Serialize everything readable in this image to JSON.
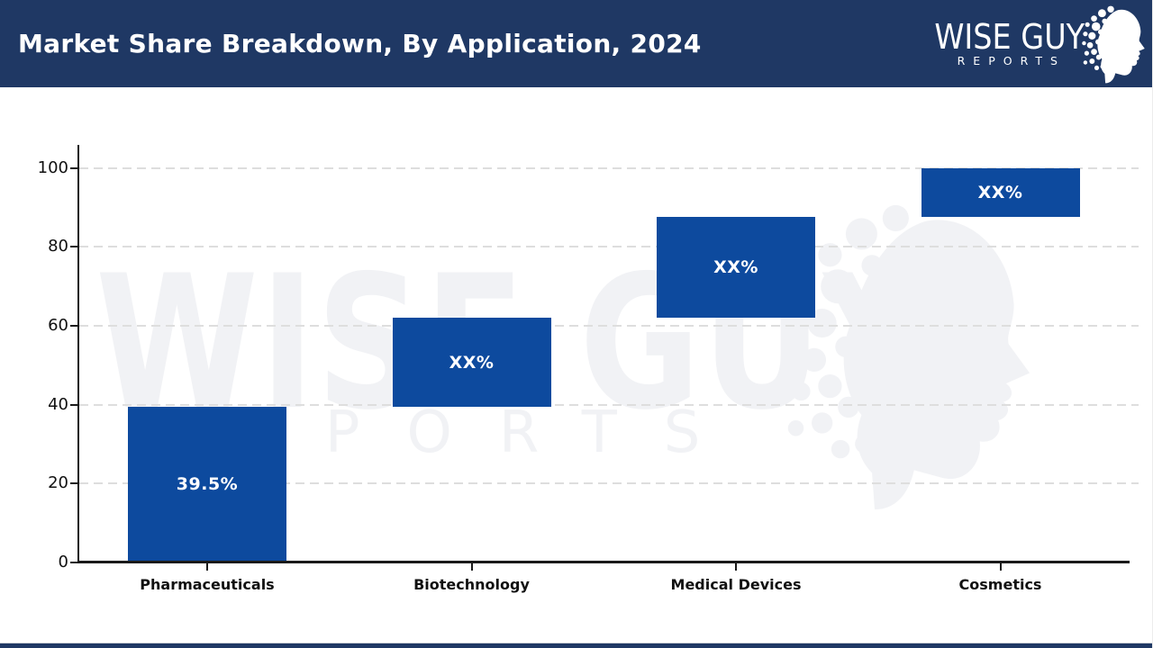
{
  "header": {
    "title": "Market Share Breakdown, By Application, 2024",
    "background_color": "#1f3864"
  },
  "brand": {
    "wordmark": "WISE GUY",
    "subtext": "REPORTS"
  },
  "watermark": {
    "wordmark": "WISE GUY",
    "subtext": "REPORTS",
    "color": "#f1f2f5"
  },
  "chart_data": {
    "type": "bar",
    "subtype": "waterfall",
    "title": "Market Share Breakdown, By Application, 2024",
    "categories": [
      "Pharmaceuticals",
      "Biotechnology",
      "Medical Devices",
      "Cosmetics"
    ],
    "segments": [
      {
        "category": "Pharmaceuticals",
        "start": 0,
        "end": 39.5,
        "label": "39.5%"
      },
      {
        "category": "Biotechnology",
        "start": 39.5,
        "end": 62,
        "label": "XX%"
      },
      {
        "category": "Medical Devices",
        "start": 62,
        "end": 87.5,
        "label": "XX%"
      },
      {
        "category": "Cosmetics",
        "start": 87.5,
        "end": 100,
        "label": "XX%"
      }
    ],
    "y_ticks": [
      0,
      20,
      40,
      60,
      80,
      100
    ],
    "ylim": [
      0,
      105.5
    ],
    "xlabel": "",
    "ylabel": "",
    "legend": "none",
    "grid": "horizontal-dashed",
    "grid_color": "#dedede",
    "bar_color": "#0d4a9e",
    "bar_label_color": "#ffffff",
    "axis_color": "#1a1a1a"
  }
}
